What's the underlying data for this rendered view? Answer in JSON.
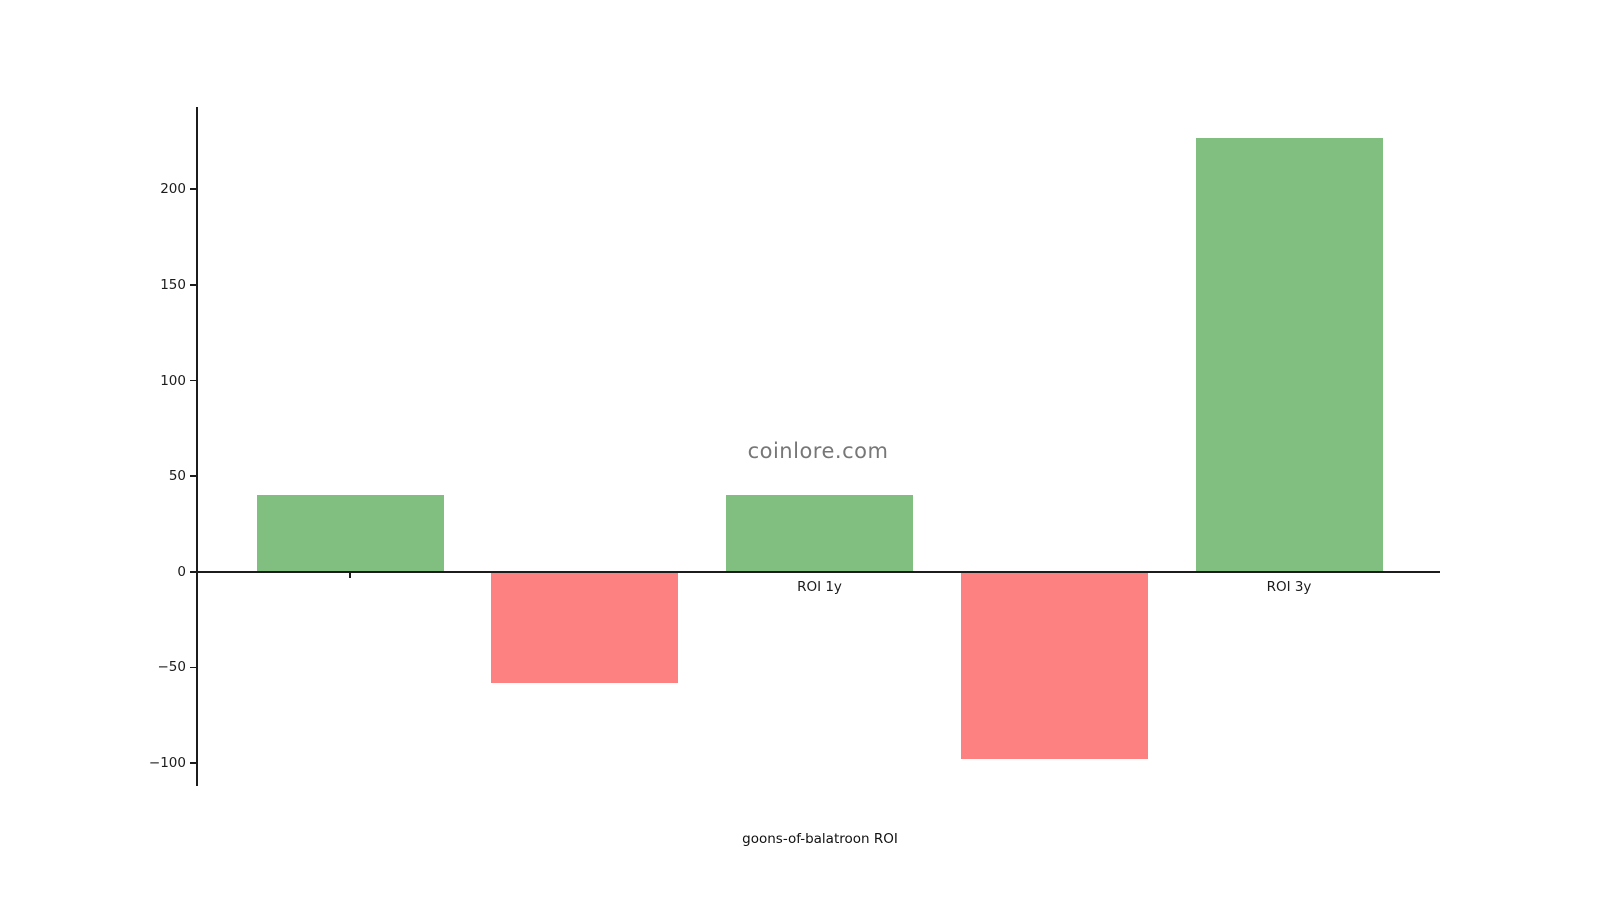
{
  "chart_data": {
    "type": "bar",
    "title": "goons-of-balatroon ROI",
    "watermark": "coinlore.com",
    "categories": [
      "",
      "",
      "ROI 1y",
      "",
      "ROI 3y"
    ],
    "values": [
      40,
      -58,
      40,
      -98,
      227
    ],
    "yticks": [
      200,
      150,
      100,
      50,
      0,
      -50,
      -100
    ],
    "ytick_labels": [
      "200",
      "150",
      "100",
      "50",
      "0",
      "−50",
      "−100"
    ],
    "ylim": [
      -112,
      243
    ],
    "xlabel": "goons-of-balatroon ROI",
    "ylabel": "",
    "grid": false,
    "legend_position": "none",
    "bar_colors": {
      "positive": "#81bf81",
      "negative": "#fd8181"
    },
    "axis_color": "#1c1c1c",
    "watermark_color": "#777777",
    "x_axis_tick_indices": [
      0
    ]
  }
}
